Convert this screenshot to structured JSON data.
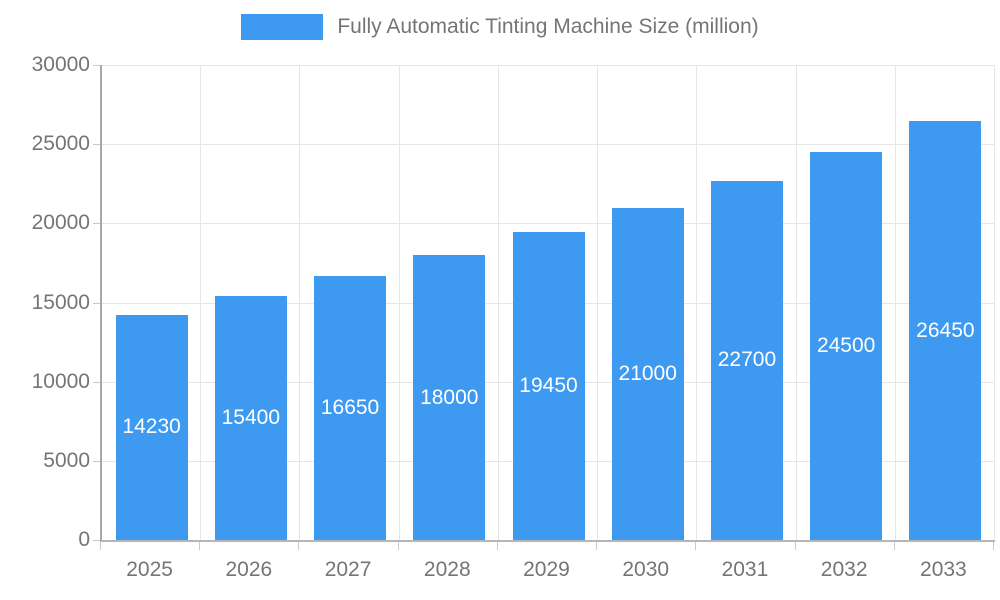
{
  "colors": {
    "bar": "#3D9AF0",
    "bar_label": "#ffffff",
    "axis_text": "#757575",
    "axis_line": "#b0b0b0",
    "gridline": "#e6e6e6",
    "background": "#ffffff"
  },
  "legend": {
    "label": "Fully Automatic Tinting Machine Size (million)"
  },
  "chart_data": {
    "type": "bar",
    "title": "",
    "series": [
      {
        "name": "Fully Automatic Tinting Machine Size (million)",
        "values": [
          14230,
          15400,
          16650,
          18000,
          19450,
          21000,
          22700,
          24500,
          26450
        ]
      }
    ],
    "categories": [
      "2025",
      "2026",
      "2027",
      "2028",
      "2029",
      "2030",
      "2031",
      "2032",
      "2033"
    ],
    "bar_labels": [
      "14230",
      "15400",
      "16650",
      "18000",
      "19450",
      "21000",
      "22700",
      "24500",
      "26450"
    ],
    "xlabel": "",
    "ylabel": "",
    "ylim": [
      0,
      30000
    ],
    "yticks": [
      0,
      5000,
      10000,
      15000,
      20000,
      25000,
      30000
    ],
    "ytick_labels": [
      "0",
      "5000",
      "10000",
      "15000",
      "20000",
      "25000",
      "30000"
    ],
    "grid": true,
    "legend_position": "top-center",
    "bar_label_position": "inside-center"
  }
}
